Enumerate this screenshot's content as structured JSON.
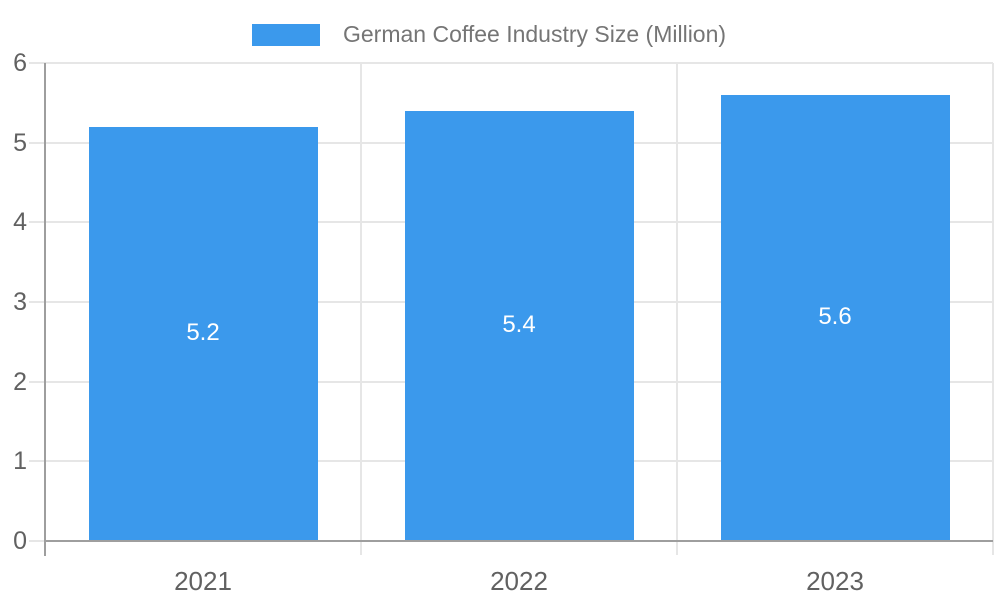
{
  "chart_data": {
    "type": "bar",
    "title": "German Coffee Industry Size (Million)",
    "categories": [
      "2021",
      "2022",
      "2023"
    ],
    "values": [
      5.2,
      5.4,
      5.6
    ],
    "value_labels": [
      "5.2",
      "5.4",
      "5.6"
    ],
    "xlabel": "",
    "ylabel": "",
    "ylim": [
      0,
      6
    ],
    "yticks": [
      0,
      1,
      2,
      3,
      4,
      5,
      6
    ],
    "grid": true,
    "legend_position": "top",
    "colors": {
      "bar": "#3B99EC",
      "grid": "#E6E6E6",
      "axis_line": "#9E9E9E",
      "axis_text": "#616161",
      "legend_text": "#757575",
      "value_text": "#FFFFFF"
    }
  }
}
